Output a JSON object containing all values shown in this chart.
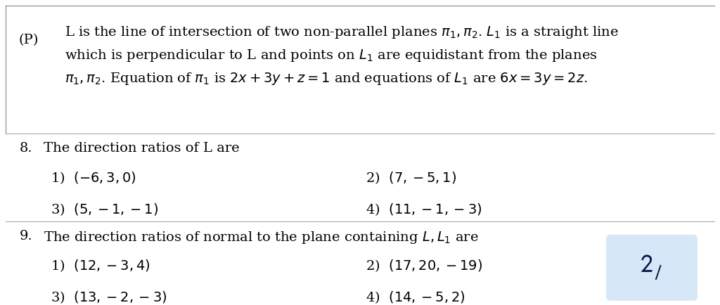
{
  "bg_color": "#ffffff",
  "text_color": "#000000",
  "icon_color": "#d6e8f7",
  "icon_symbol_color": "#0a1a4a",
  "paragraph_label": "(P)",
  "paragraph_line1": "L is the line of intersection of two non-parallel planes $\\pi_1, \\pi_2$. $L_1$ is a straight line",
  "paragraph_line2": "which is perpendicular to L and points on $L_1$ are equidistant from the planes",
  "paragraph_line3": "$\\pi_1, \\pi_2$. Equation of $\\pi_1$ is $2x + 3y + z = 1$ and equations of $L_1$ are $6x = 3y = 2z$.",
  "q8_label": "8.",
  "q8_text": "The direction ratios of L are",
  "q8_opt1": "1)  $( - 6, 3, 0 )$",
  "q8_opt2": "2)  $( 7 , - 5, 1 )$",
  "q8_opt3": "3)  $( 5 , - 1 , - 1 )$",
  "q8_opt4": "4)  $( 11 , - 1 , - 3 )$",
  "q9_label": "9.",
  "q9_text": "The direction ratios of normal to the plane containing $L, L_1$ are",
  "q9_opt1": "1)  $( 12 , - 3, 4 )$",
  "q9_opt2": "2)  $( 17, 20 , - 19 )$",
  "q9_opt3": "3)  $( 13 , - 2 , - 3 )$",
  "q9_opt4": "4)  $( 14 , - 5, 2 )$",
  "border_color": "#999999",
  "separator_color": "#aaaaaa",
  "font_size": 14.0,
  "fig_width": 10.24,
  "fig_height": 4.34,
  "dpi": 100
}
